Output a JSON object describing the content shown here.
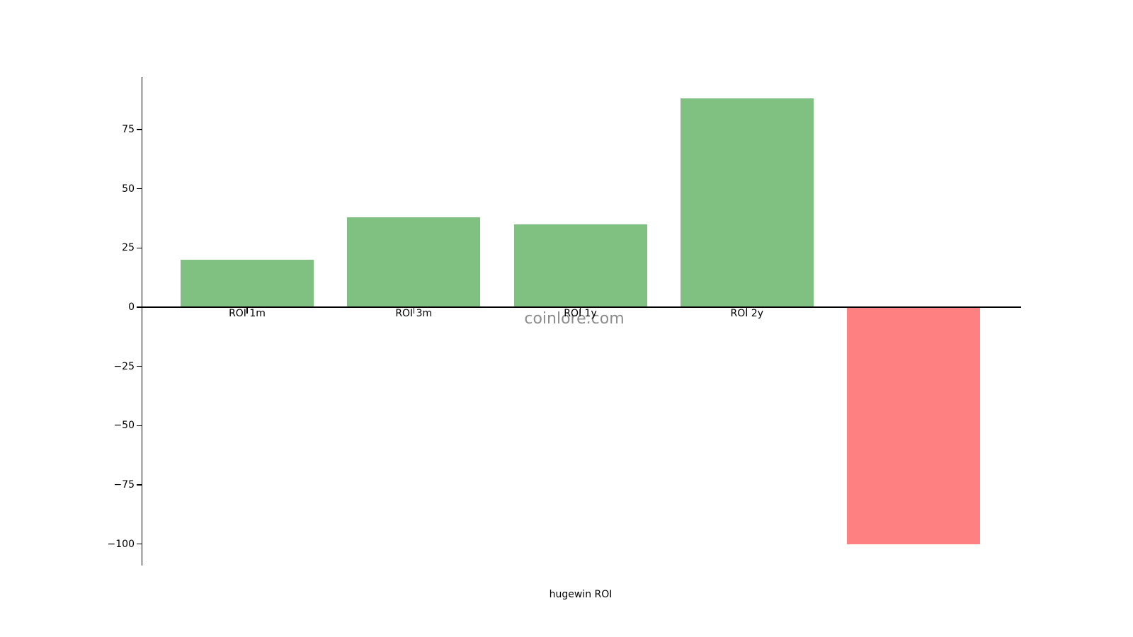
{
  "page": {
    "background": "#ffffff"
  },
  "watermark": {
    "text": "coinlore.com",
    "color": "#8c8c8c"
  },
  "chart_data": {
    "type": "bar",
    "title": "hugewin ROI",
    "xlabel": "hugewin ROI",
    "ylabel": "",
    "categories": [
      "ROI 1m",
      "ROI 3m",
      "ROI 1y",
      "ROI 2y",
      ""
    ],
    "values": [
      20,
      38,
      35,
      88,
      -100
    ],
    "bar_colors": [
      "#80c080",
      "#80c080",
      "#80c080",
      "#80c080",
      "#ff8080"
    ],
    "positive_color": "#80c080",
    "negative_color": "#ff8080",
    "yticks": [
      75,
      50,
      25,
      0,
      -25,
      -50,
      -75,
      -100
    ],
    "ytick_labels": [
      "75",
      "50",
      "25",
      "0",
      "−25",
      "−50",
      "−75",
      "−100"
    ],
    "ylim": [
      -109,
      97
    ],
    "grid": false,
    "legend": null,
    "axis_color": "#000000",
    "text_color": "#000000"
  }
}
